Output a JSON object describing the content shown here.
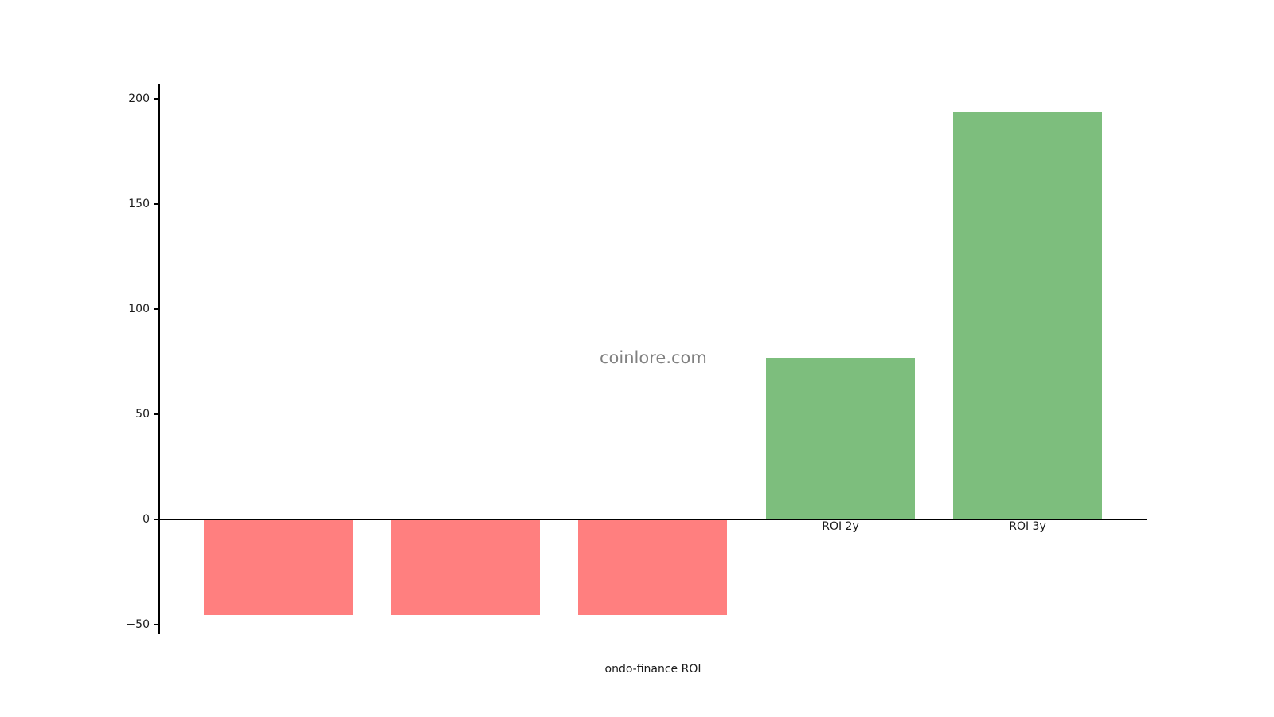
{
  "chart_data": {
    "type": "bar",
    "title": "ondo-finance ROI",
    "watermark": "coinlore.com",
    "categories": [
      "",
      "",
      "",
      "ROI 2y",
      "ROI 3y"
    ],
    "values": [
      -45,
      -45,
      -45,
      77,
      194
    ],
    "xlabel": "",
    "ylabel": "",
    "y_ticks": [
      200,
      150,
      100,
      50,
      0,
      -50
    ],
    "ylim": [
      -57,
      207
    ],
    "grid": false,
    "legend": "none",
    "colors": {
      "positive": "#7dbe7d",
      "negative": "#ff7f7f",
      "axis": "#000000",
      "text": "#1a1a1a",
      "watermark": "#808080"
    }
  }
}
